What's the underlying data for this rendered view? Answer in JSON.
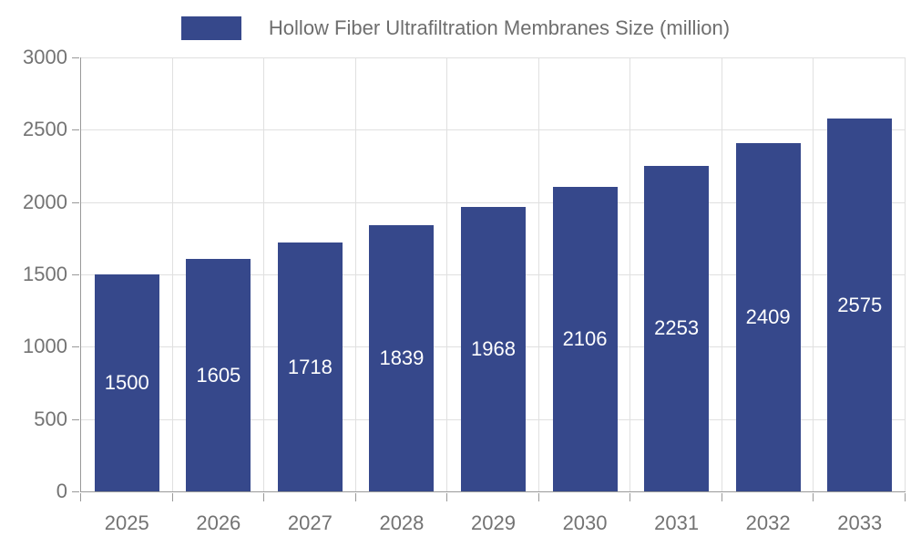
{
  "chart_data": {
    "type": "bar",
    "title": "Hollow Fiber Ultrafiltration Membranes Size (million)",
    "categories": [
      "2025",
      "2026",
      "2027",
      "2028",
      "2029",
      "2030",
      "2031",
      "2032",
      "2033"
    ],
    "values": [
      1500,
      1605,
      1718,
      1839,
      1968,
      2106,
      2253,
      2409,
      2575
    ],
    "xlabel": "",
    "ylabel": "",
    "ylim": [
      0,
      3000
    ],
    "yticks": [
      0,
      500,
      1000,
      1500,
      2000,
      2500,
      3000
    ],
    "grid": true,
    "legend_position": "top",
    "colors": {
      "bar": "#36488B",
      "value_label": "#ffffff",
      "axis": "#999999",
      "grid": "#e0e0e0",
      "tick_label": "#737373",
      "legend_text": "#6e6e6e",
      "background": "#ffffff"
    }
  }
}
